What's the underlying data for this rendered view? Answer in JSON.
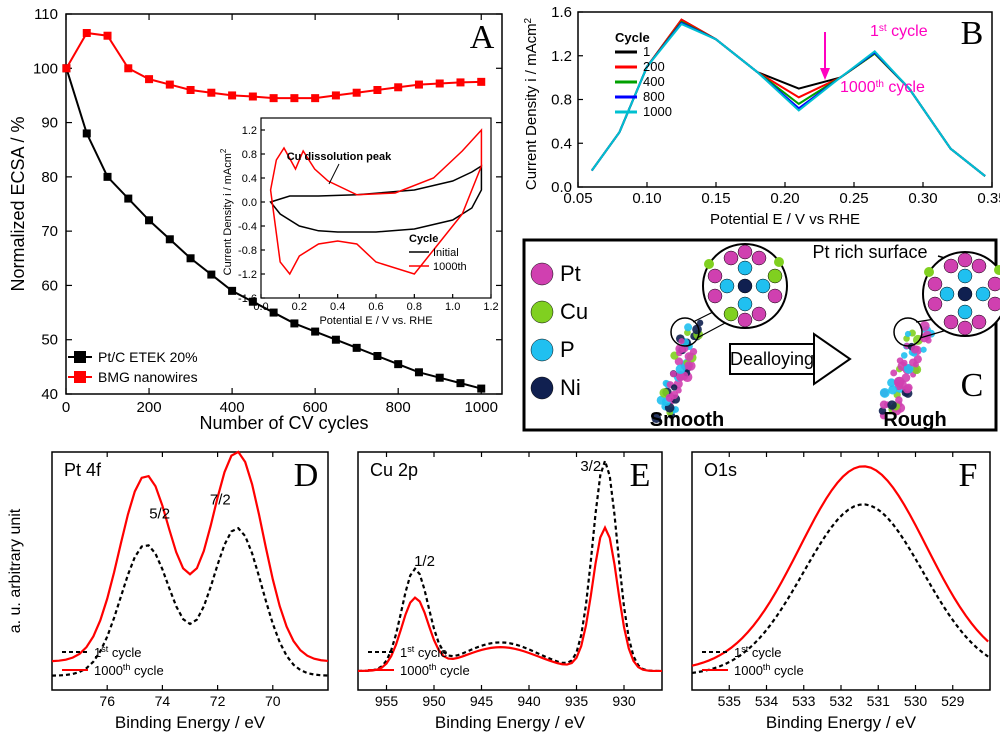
{
  "panelA": {
    "type": "line+scatter",
    "label": "A",
    "xlabel": "Number of CV cycles",
    "ylabel": "Normalized ECSA / %",
    "xlim": [
      0,
      1050
    ],
    "ylim": [
      40,
      110
    ],
    "xticks": [
      0,
      200,
      400,
      600,
      800,
      1000
    ],
    "yticks": [
      40,
      50,
      60,
      70,
      80,
      90,
      100,
      110
    ],
    "series": [
      {
        "name": "Pt/C ETEK 20%",
        "color": "#000000",
        "x": [
          1,
          50,
          100,
          150,
          200,
          250,
          300,
          350,
          400,
          450,
          500,
          550,
          600,
          650,
          700,
          750,
          800,
          850,
          900,
          950,
          1000
        ],
        "y": [
          100,
          88,
          80,
          76,
          72,
          68.5,
          65,
          62,
          59,
          57,
          55,
          53,
          51.5,
          50,
          48.5,
          47,
          45.5,
          44,
          43,
          42,
          41
        ]
      },
      {
        "name": "BMG nanowires",
        "color": "#ff0000",
        "x": [
          1,
          50,
          100,
          150,
          200,
          250,
          300,
          350,
          400,
          450,
          500,
          550,
          600,
          650,
          700,
          750,
          800,
          850,
          900,
          950,
          1000
        ],
        "y": [
          100,
          106.5,
          106,
          100,
          98,
          97,
          96,
          95.5,
          95,
          94.8,
          94.5,
          94.5,
          94.5,
          95,
          95.5,
          96,
          96.5,
          97,
          97.2,
          97.4,
          97.5
        ]
      }
    ],
    "inset": {
      "xlabel": "Potential E / V vs. RHE",
      "ylabel": "Current Density i / mAcm",
      "annotation": "Cu dissolution peak",
      "xlim": [
        0,
        1.2
      ],
      "ylim": [
        -1.6,
        1.4
      ],
      "xticks": [
        0.0,
        0.2,
        0.4,
        0.6,
        0.8,
        1.0,
        1.2
      ],
      "yticks": [
        -1.6,
        -1.2,
        -0.8,
        -0.4,
        0.0,
        0.4,
        0.8,
        1.2
      ],
      "legend_title": "Cycle",
      "series": [
        {
          "name": "Initial",
          "color": "#000000"
        },
        {
          "name": "1000th",
          "color": "#ff0000"
        }
      ]
    }
  },
  "panelB": {
    "type": "line",
    "label": "B",
    "xlabel": "Potential E / V vs RHE",
    "ylabel": "Current Density i / mAcm",
    "ylabel_sup": "2",
    "xlim": [
      0.05,
      0.35
    ],
    "ylim": [
      0,
      1.6
    ],
    "xticks": [
      0.05,
      0.1,
      0.15,
      0.2,
      0.25,
      0.3,
      0.35
    ],
    "yticks": [
      0.0,
      0.4,
      0.8,
      1.2,
      1.6
    ],
    "annotation_top": "1ˢᵗ cycle",
    "annotation_bottom": "1000ᵗʰ cycle",
    "annotation_color": "#ff00c0",
    "legend_title": "Cycle",
    "series": [
      {
        "name": "1",
        "color": "#000000",
        "peak1": 1.53,
        "valley": 0.9,
        "peak2": 1.22
      },
      {
        "name": "200",
        "color": "#ff0000",
        "peak1": 1.53,
        "valley": 0.82,
        "peak2": 1.22
      },
      {
        "name": "400",
        "color": "#00a000",
        "peak1": 1.51,
        "valley": 0.76,
        "peak2": 1.22
      },
      {
        "name": "800",
        "color": "#0000ff",
        "peak1": 1.5,
        "valley": 0.72,
        "peak2": 1.23
      },
      {
        "name": "1000",
        "color": "#00c0d0",
        "peak1": 1.49,
        "valley": 0.7,
        "peak2": 1.24
      }
    ]
  },
  "panelC": {
    "type": "infographic",
    "label": "C",
    "legend": [
      {
        "name": "Pt",
        "color": "#d040b0"
      },
      {
        "name": "Cu",
        "color": "#80d020"
      },
      {
        "name": "P",
        "color": "#20c0f0"
      },
      {
        "name": "Ni",
        "color": "#102050"
      }
    ],
    "left_label": "Smooth",
    "right_label": "Rough",
    "arrow_label": "Dealloying",
    "top_label": "Pt rich surface",
    "border_color": "#000000"
  },
  "panelD": {
    "type": "xps",
    "label": "D",
    "title": "Pt 4f",
    "peaks": [
      "5/2",
      "7/2"
    ],
    "xlabel": "Binding Energy / eV",
    "ylabel": "a. u. arbitrary unit",
    "xlim": [
      78,
      68
    ],
    "xticks": [
      76,
      74,
      72,
      70
    ],
    "series": [
      {
        "name": "1ˢᵗ cycle",
        "color": "#000000",
        "dash": "4,3"
      },
      {
        "name": "1000ᵗʰ cycle",
        "color": "#ff0000",
        "dash": "none"
      }
    ]
  },
  "panelE": {
    "type": "xps",
    "label": "E",
    "title": "Cu 2p",
    "peaks": [
      "1/2",
      "3/2"
    ],
    "xlabel": "Binding Energy / eV",
    "xlim": [
      958,
      926
    ],
    "xticks": [
      955,
      950,
      945,
      940,
      935,
      930
    ],
    "series": [
      {
        "name": "1ˢᵗ cycle",
        "color": "#000000",
        "dash": "4,3"
      },
      {
        "name": "1000ᵗʰ cycle",
        "color": "#ff0000",
        "dash": "none"
      }
    ]
  },
  "panelF": {
    "type": "xps",
    "label": "F",
    "title": "O1s",
    "xlabel": "Binding Energy / eV",
    "xlim": [
      536,
      528
    ],
    "xticks": [
      535,
      534,
      533,
      532,
      531,
      530,
      529
    ],
    "series": [
      {
        "name": "1ˢᵗ cycle",
        "color": "#000000",
        "dash": "4,3"
      },
      {
        "name": "1000ᵗʰ cycle",
        "color": "#ff0000",
        "dash": "none"
      }
    ]
  }
}
